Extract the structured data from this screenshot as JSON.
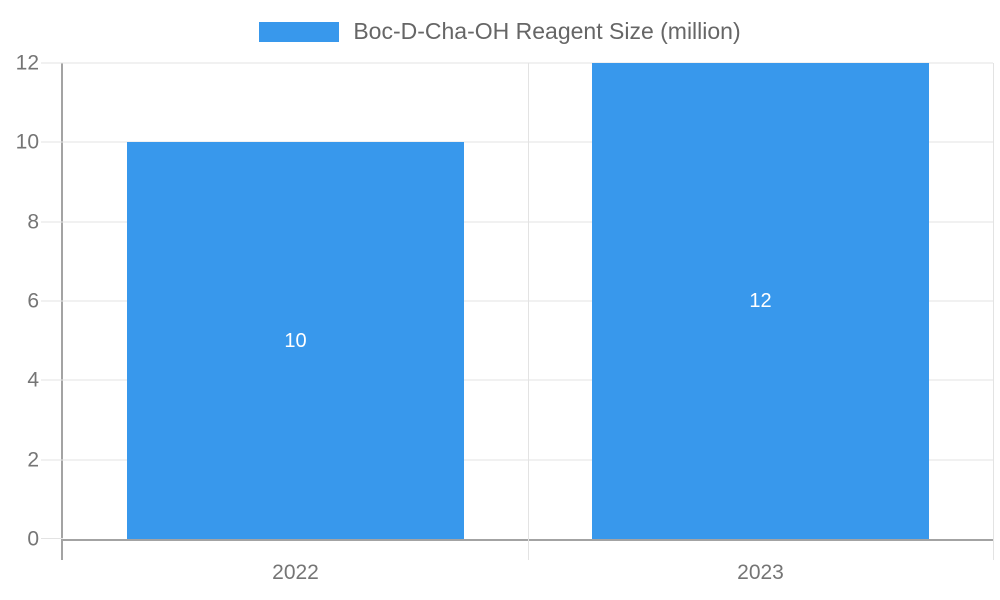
{
  "chart_data": {
    "type": "bar",
    "title": "",
    "xlabel": "",
    "ylabel": "",
    "legend": {
      "label": "Boc-D-Cha-OH Reagent Size (million)",
      "position": "top-center"
    },
    "categories": [
      "2022",
      "2023"
    ],
    "series": [
      {
        "name": "Boc-D-Cha-OH Reagent Size (million)",
        "values": [
          10,
          12
        ]
      }
    ],
    "value_labels": [
      "10",
      "12"
    ],
    "ylim": [
      0,
      12
    ],
    "yticks": [
      0,
      2,
      4,
      6,
      8,
      10,
      12
    ],
    "grid": true,
    "bar_width_fraction": 0.725,
    "colors": {
      "bar": "#3898EC",
      "grid_line": "#e3e3e3",
      "axis_line": "#a3a3a3",
      "tick_label": "#757575",
      "legend_text": "#666666",
      "value_label": "#ffffff",
      "background": "#ffffff"
    }
  }
}
